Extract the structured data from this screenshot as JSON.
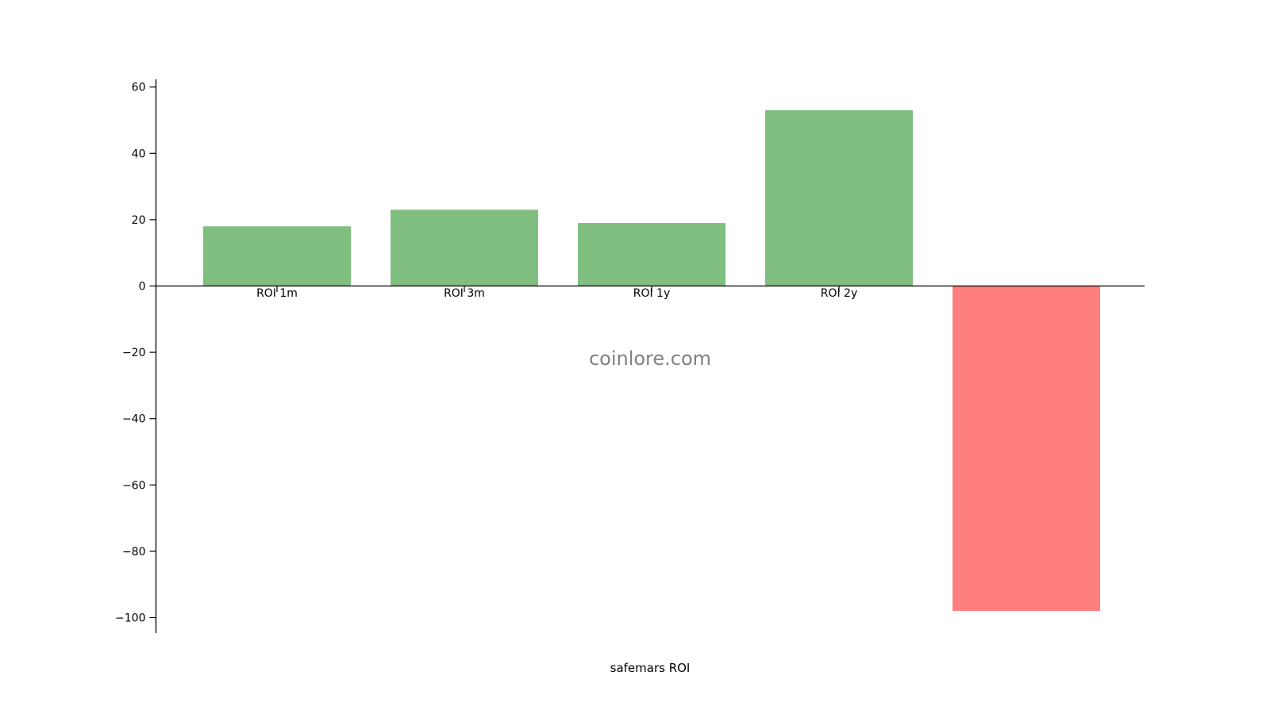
{
  "chart_data": {
    "type": "bar",
    "title": "",
    "xlabel": "safemars ROI",
    "ylabel": "",
    "categories": [
      "ROI 1m",
      "ROI 3m",
      "ROI 1y",
      "ROI 2y",
      ""
    ],
    "values": [
      18,
      23,
      19,
      53,
      -98
    ],
    "positive_color": "#80bf80",
    "negative_color": "#ff7f7f",
    "axis_color": "#000000",
    "yticks": [
      60,
      40,
      20,
      0,
      -20,
      -40,
      -60,
      -80,
      -100
    ],
    "ylim": [
      -104.7,
      62.3
    ],
    "grid": false,
    "legend_position": "none",
    "watermark": "coinlore.com",
    "watermark_color": "#808080"
  }
}
